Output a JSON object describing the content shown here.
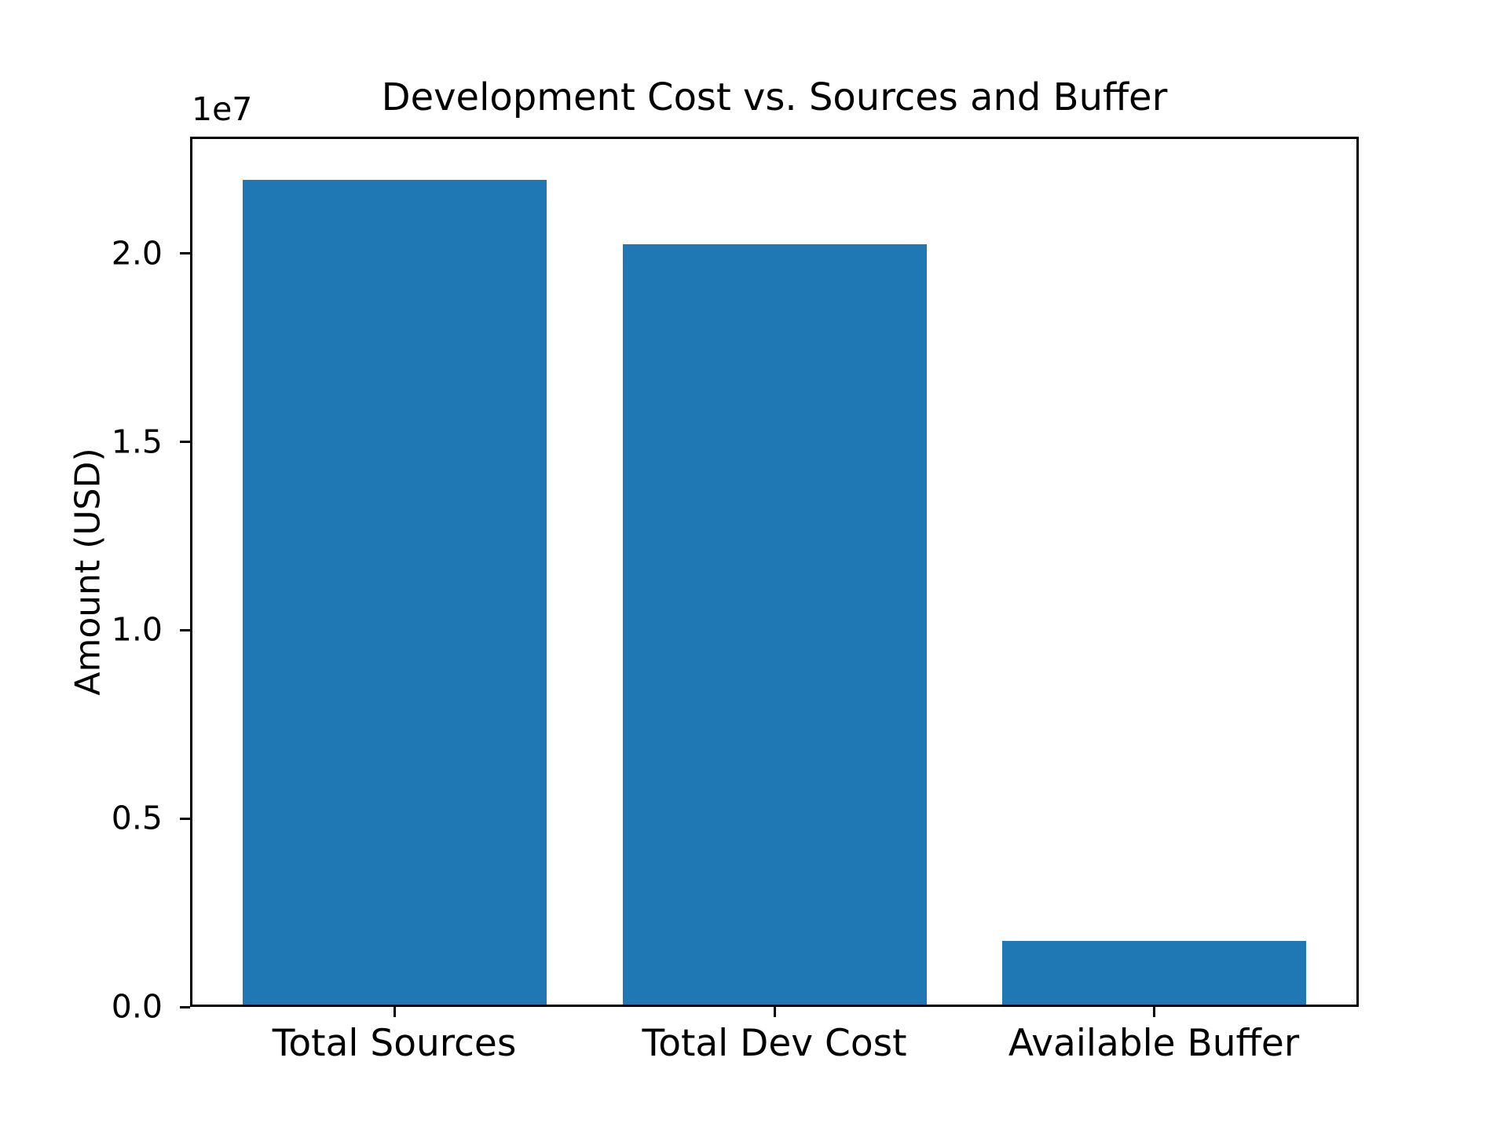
{
  "chart_data": {
    "type": "bar",
    "title": "Development Cost vs. Sources and Buffer",
    "ylabel": "Amount (USD)",
    "xlabel": "",
    "categories": [
      "Total Sources",
      "Total Dev Cost",
      "Available Buffer"
    ],
    "values": [
      22000000,
      20300000,
      1700000
    ],
    "bar_color": "#1f77b4",
    "axis_color": "#000000",
    "background_color": "#ffffff",
    "ylim": [
      0,
      23100000
    ],
    "yticks": [
      0.0,
      0.5,
      1.0,
      1.5,
      2.0
    ],
    "ytick_scale": 10000000,
    "offset_text": "1e7",
    "grid": false,
    "legend": false
  }
}
